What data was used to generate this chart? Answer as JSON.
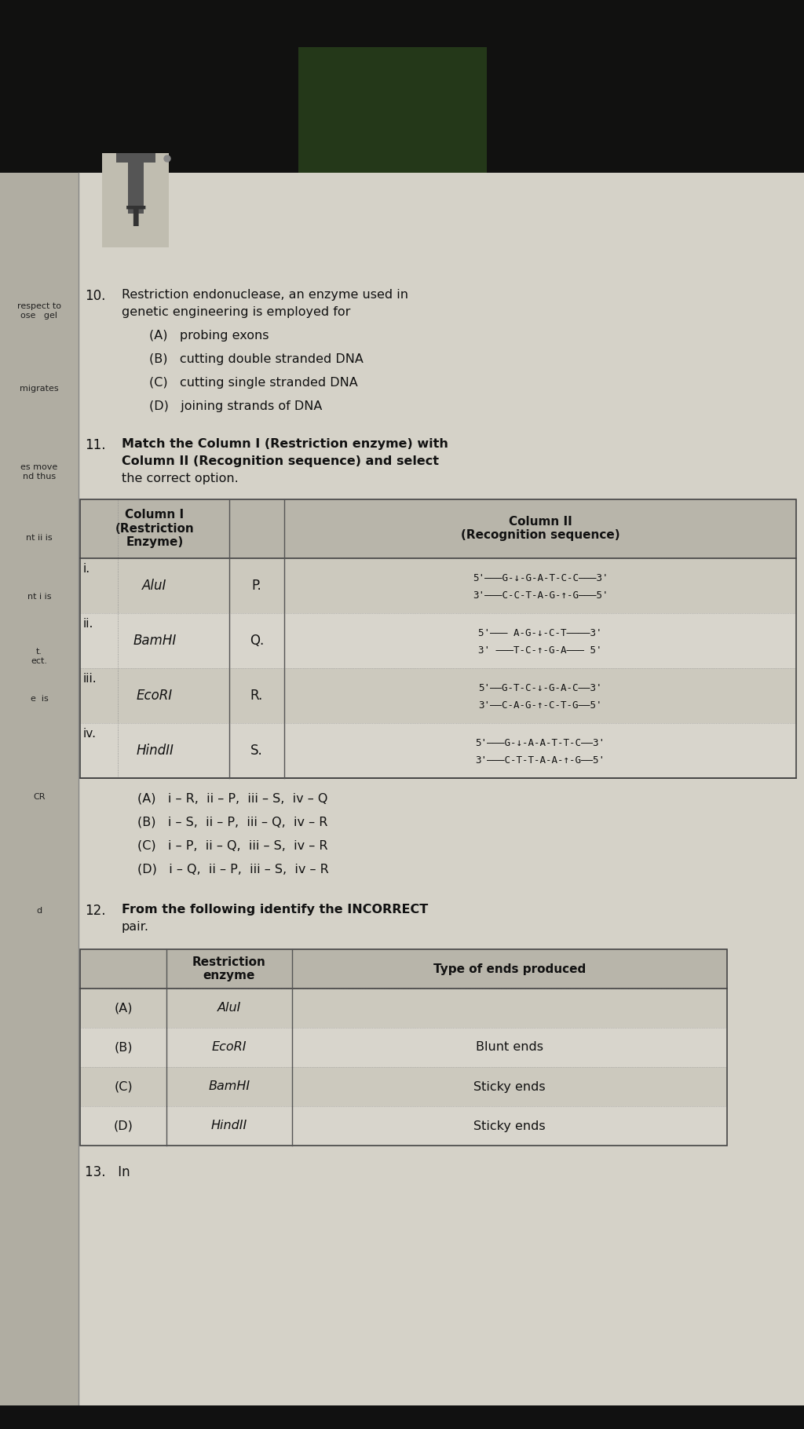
{
  "bg_dark": "#1a1a1a",
  "bg_table_outer": "#1e1c18",
  "sidebar_bg": "#a8a59a",
  "page_bg": "#d8d5cc",
  "table_header_bg": "#b8b5aa",
  "table_row_even": "#ccc9be",
  "table_row_odd": "#d8d5cc",
  "text_dark": "#111111",
  "q10_num": "10.",
  "q10_line1": "Restriction endonuclease, an enzyme used in",
  "q10_line2": "genetic engineering is employed for",
  "q10_opts": [
    "(A)   probing exons",
    "(B)   cutting double stranded DNA",
    "(C)   cutting single stranded DNA",
    "(D)   joining strands of DNA"
  ],
  "q11_num": "11.",
  "q11_line1": "Match the Column I (Restriction enzyme) with",
  "q11_line2": "Column II (Recognition sequence) and select",
  "q11_line3": "the correct option.",
  "tbl1_col1_hdr": "Column I\n(Restriction\nEnzyme)",
  "tbl1_col2_hdr": "Column II\n(Recognition sequence)",
  "tbl1_rows": [
    {
      "num": "i.",
      "enzyme": "AluI",
      "seq_lbl": "P.",
      "l1": "5'———G-↓-G-A-T-C-C———3'",
      "l2": "3'———C-C-T-A-G-↑-G———5'"
    },
    {
      "num": "ii.",
      "enzyme": "BamHI",
      "seq_lbl": "Q.",
      "l1": "5'——— A-G-↓-C-T————3'",
      "l2": "3' ———T-C-↑-G-A——— 5'"
    },
    {
      "num": "iii.",
      "enzyme": "EcoRI",
      "seq_lbl": "R.",
      "l1": "5'——G-T-C-↓-G-A-C——3'",
      "l2": "3'——C-A-G-↑-C-T-G——5'"
    },
    {
      "num": "iv.",
      "enzyme": "HindII",
      "seq_lbl": "S.",
      "l1": "5'———G-↓-A-A-T-T-C——3'",
      "l2": "3'———C-T-T-A-A-↑-G——5'"
    }
  ],
  "q11_opts": [
    "(A)   i – R,  ii – P,  iii – S,  iv – Q",
    "(B)   i – S,  ii – P,  iii – Q,  iv – R",
    "(C)   i – P,  ii – Q,  iii – S,  iv – R",
    "(D)   i – Q,  ii – P,  iii – S,  iv – R"
  ],
  "q12_num": "12.",
  "q12_line1": "From the following identify the INCORRECT",
  "q12_line2": "pair.",
  "tbl2_hdr1": "Restriction\nenzyme",
  "tbl2_hdr2": "Type of ends produced",
  "tbl2_rows": [
    {
      "lbl": "(A)",
      "enzyme": "AluI",
      "type": ""
    },
    {
      "lbl": "(B)",
      "enzyme": "EcoRI",
      "type": "Blunt ends"
    },
    {
      "lbl": "(C)",
      "enzyme": "BamHI",
      "type": "Sticky ends"
    },
    {
      "lbl": "(D)",
      "enzyme": "HindII",
      "type": "Sticky ends"
    }
  ],
  "q13_partial": "13.   In",
  "sidebar_labels": [
    [
      385,
      "respect to\nose   gel"
    ],
    [
      490,
      "migrates"
    ],
    [
      590,
      "es move\nnd thus"
    ],
    [
      680,
      "nt ii is"
    ],
    [
      755,
      "nt i is"
    ],
    [
      825,
      "t.\nect."
    ],
    [
      885,
      "e  is"
    ],
    [
      1010,
      "CR"
    ],
    [
      1155,
      "d"
    ]
  ]
}
